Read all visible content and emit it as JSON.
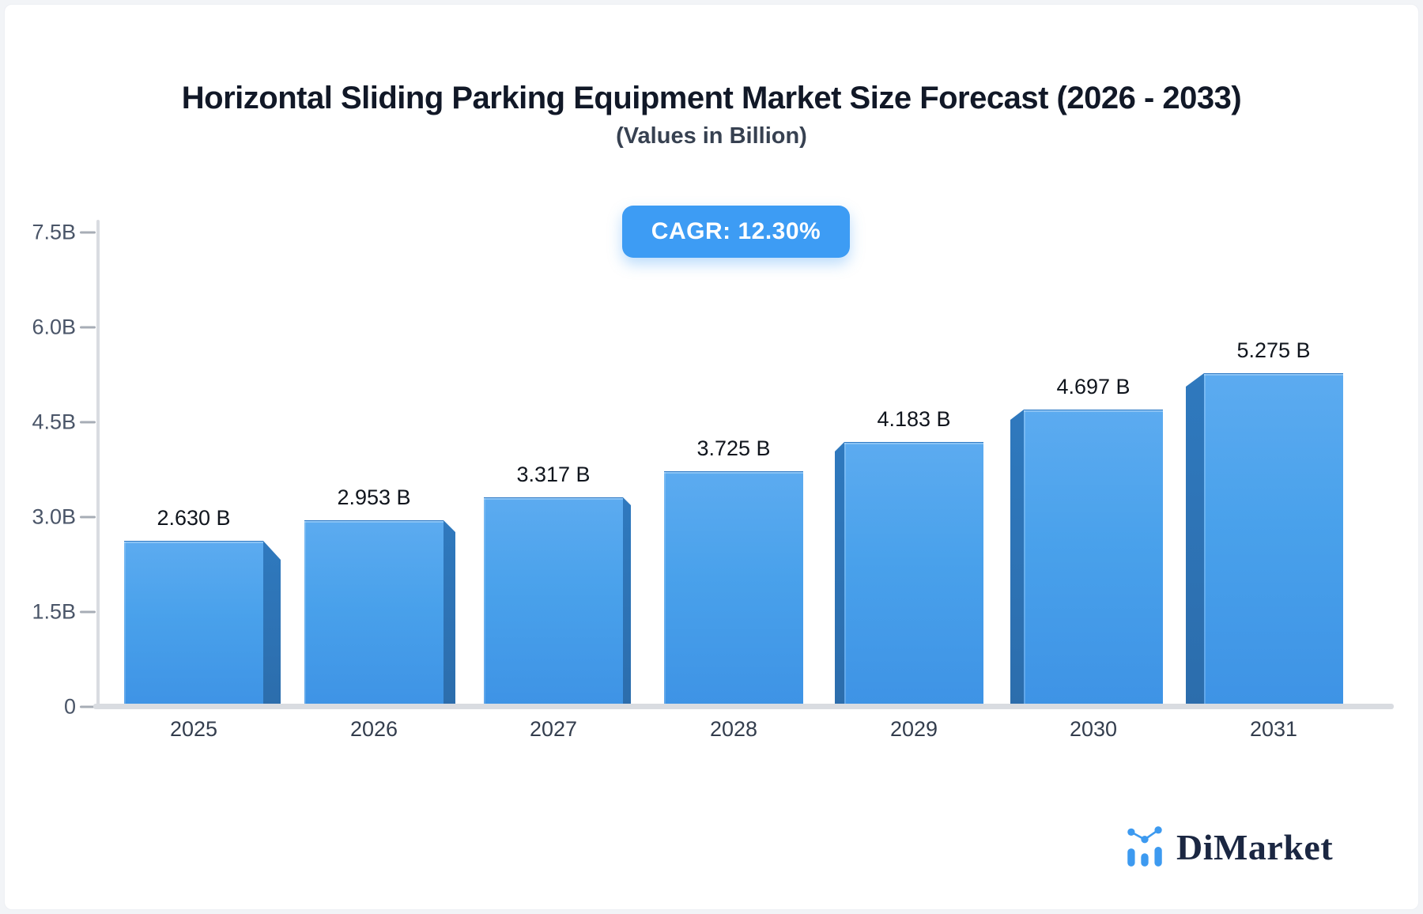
{
  "page": {
    "background": "#f2f4f7",
    "card_background": "#ffffff"
  },
  "header": {
    "title": "Horizontal Sliding Parking Equipment Market Size Forecast (2026 - 2033)",
    "subtitle": "(Values in Billion)"
  },
  "badge": {
    "label": "CAGR: 12.30%",
    "background": "#3d9cf4",
    "text_color": "#ffffff"
  },
  "chart_data": {
    "type": "bar",
    "title": "Horizontal Sliding Parking Equipment Market Size Forecast (2026 - 2033)",
    "subtitle": "(Values in Billion)",
    "categories": [
      "2025",
      "2026",
      "2027",
      "2028",
      "2029",
      "2030",
      "2031"
    ],
    "values": [
      2.63,
      2.953,
      3.317,
      3.725,
      4.183,
      4.697,
      5.275
    ],
    "value_labels": [
      "2.630 B",
      "2.953 B",
      "3.317 B",
      "3.725 B",
      "4.183 B",
      "4.697 B",
      "5.275 B"
    ],
    "cagr_label": "CAGR: 12.30%",
    "xlabel": "",
    "ylabel": "",
    "ylim": [
      0,
      7.5
    ],
    "yticks": [
      {
        "label": "7.5B",
        "value": 7.5
      },
      {
        "label": "6.0B",
        "value": 6.0
      },
      {
        "label": "4.5B",
        "value": 4.5
      },
      {
        "label": "3.0B",
        "value": 3.0
      },
      {
        "label": "1.5B",
        "value": 1.5
      },
      {
        "label": "0",
        "value": 0.0
      }
    ],
    "grid": false,
    "legend": false,
    "bar_style_3d": true,
    "colors": {
      "bar_face_top": "#5cabf0",
      "bar_face_bottom": "#3e93e5",
      "bar_side": "#2d73b4",
      "axis_line": "#d9dce1",
      "tick_text": "#4a5568",
      "value_text": "#10151d"
    }
  },
  "logo": {
    "name": "DiMarket",
    "icon": "bar-line-chart-icon",
    "icon_color": "#3d9af0",
    "text_color": "#1b2742"
  }
}
